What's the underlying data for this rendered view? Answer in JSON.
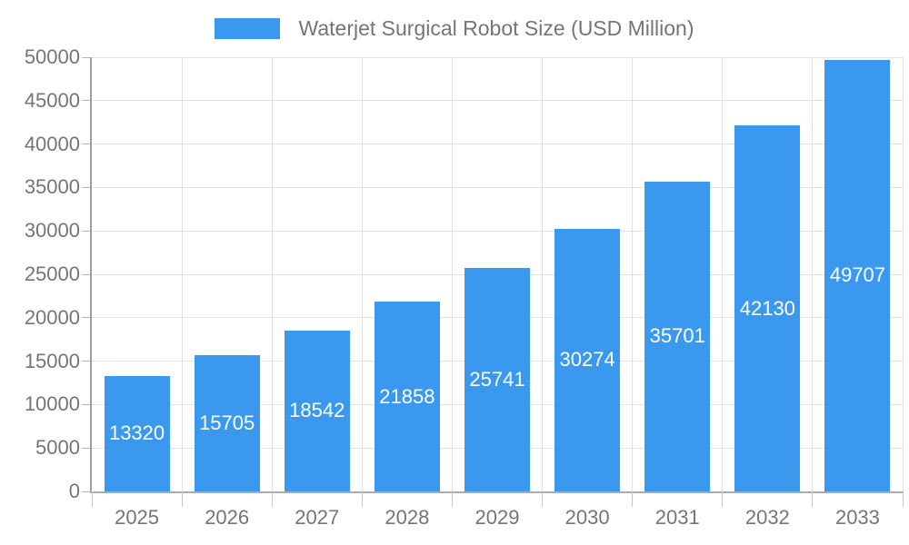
{
  "legend": {
    "label": "Waterjet Surgical Robot Size (USD Million)"
  },
  "chart_data": {
    "type": "bar",
    "title": "Waterjet Surgical Robot Size (USD Million)",
    "categories": [
      "2025",
      "2026",
      "2027",
      "2028",
      "2029",
      "2030",
      "2031",
      "2032",
      "2033"
    ],
    "values": [
      13320,
      15705,
      18542,
      21858,
      25741,
      30274,
      35701,
      42130,
      49707
    ],
    "xlabel": "",
    "ylabel": "",
    "ylim": [
      0,
      50000
    ],
    "ytick_step": 5000,
    "grid": true,
    "legend_position": "top",
    "bar_color": "#3a99ee",
    "value_label_color": "#ffffff",
    "axis_color": "#9e9e9e",
    "gridline_color": "#e2e2e2",
    "tick_label_color": "#757575"
  }
}
